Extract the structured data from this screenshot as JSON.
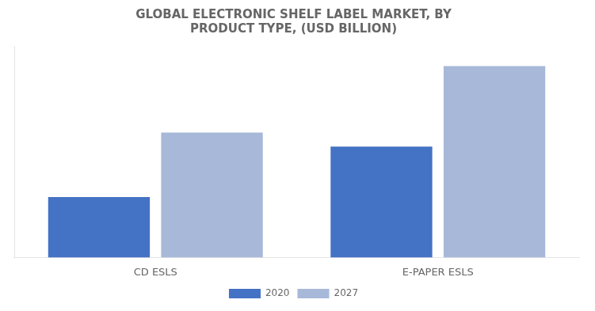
{
  "chart_data": {
    "type": "bar",
    "title": "GLOBAL ELECTRONIC SHELF LABEL MARKET, BY\nPRODUCT TYPE, (USD BILLION)",
    "categories": [
      "CD ESLS",
      "E-PAPER ESLS"
    ],
    "series": [
      {
        "name": "2020",
        "color": "#4472C4",
        "values": [
          0.3,
          0.55
        ]
      },
      {
        "name": "2027",
        "color": "#A8B8D8",
        "values": [
          0.62,
          0.95
        ]
      }
    ],
    "ylim": [
      0,
      1.05
    ],
    "grid": false,
    "legend": "bottom",
    "tick_labels": "x"
  }
}
